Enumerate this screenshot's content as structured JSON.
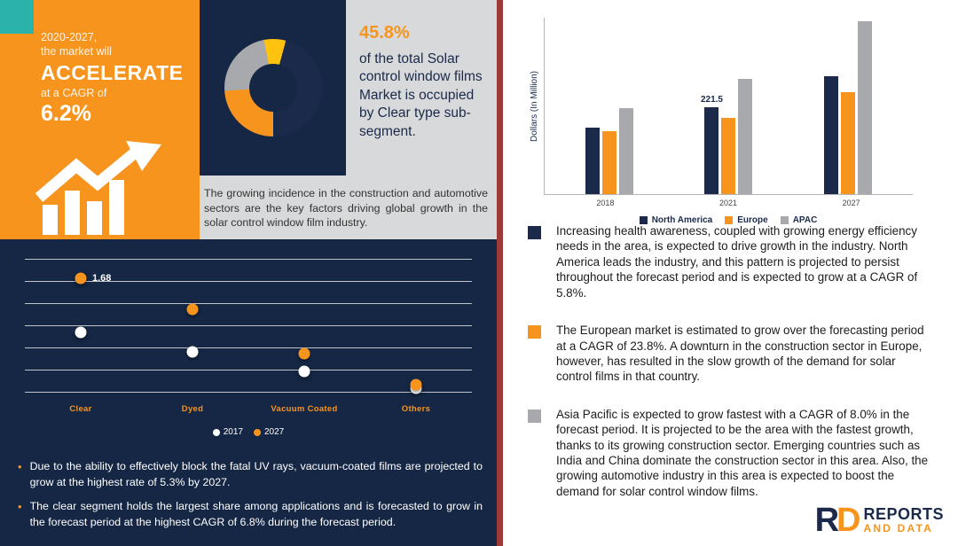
{
  "colors": {
    "orange": "#F7941E",
    "navy": "#152744",
    "navy_dark": "#1B2A4A",
    "gray": "#A7A9AC",
    "yellow": "#FFC20E",
    "teal": "#2BB3AB",
    "light_gray": "#D8D9DA",
    "stripe_red": "#9E3A38"
  },
  "promo": {
    "line1": "2020-2027,",
    "line2": "the market will",
    "accelerate": "ACCELERATE",
    "line3": "at a CAGR of",
    "cagr": "6.2%"
  },
  "highlight": {
    "pct": "45.8%",
    "text": "of the total Solar control window films Market is occupied by Clear type sub-segment."
  },
  "driver_text": "The growing incidence in the construction and automotive sectors are the key factors driving global growth in the solar control window film industry.",
  "left_bullets": [
    "Due to the ability to effectively block the fatal UV rays, vacuum-coated films are projected to grow at the highest rate of 5.3% by 2027.",
    "The clear segment holds the largest share among applications and is forecasted to grow in the forecast period at the highest CAGR of 6.8% during the forecast period."
  ],
  "right_bullets": [
    {
      "color": "#1B2A4A",
      "text": "Increasing health awareness, coupled with growing energy efficiency needs in the area, is expected to drive growth in the industry. North America leads the industry, and this pattern is projected to persist throughout the forecast period and is expected to grow at a CAGR of 5.8%."
    },
    {
      "color": "#F7941E",
      "text": "The European market is estimated to grow over the forecasting period at a CAGR of 23.8%. A downturn in the construction sector in Europe, however, has resulted in the slow growth of the demand for solar control films in that country."
    },
    {
      "color": "#A7A9AC",
      "text": "Asia Pacific is expected to grow fastest with a CAGR of 8.0% in the forecast period. It is projected to be the area with the fastest growth, thanks to its growing construction sector. Emerging countries such as India and China dominate the construction sector in this area. Also, the growing automotive industry in this area is expected to boost the demand for solar control window films."
    }
  ],
  "logo": {
    "r": "R",
    "d": "D",
    "reports": "REPORTS",
    "and_data": "AND DATA"
  },
  "chart_data": [
    {
      "type": "pie",
      "donut": true,
      "title": "Solar control window films market share by type",
      "slices": [
        {
          "label": "Clear",
          "value": 45.8,
          "color": "#1B2A4A"
        },
        {
          "label": "Dyed",
          "value": 24.0,
          "color": "#F7941E"
        },
        {
          "label": "Vacuum Coated",
          "value": 23.0,
          "color": "#A7A9AC"
        },
        {
          "label": "Others",
          "value": 7.2,
          "color": "#FFC20E"
        }
      ],
      "annotation": "45.8% of the total market is occupied by Clear type sub-segment"
    },
    {
      "type": "scatter",
      "categories": [
        "Clear",
        "Dyed",
        "Vacuum Coated",
        "Others"
      ],
      "series": [
        {
          "name": "2017",
          "color": "#FFFFFF",
          "values": [
            1.07,
            0.85,
            0.63,
            0.44
          ]
        },
        {
          "name": "2027",
          "color": "#F7941E",
          "values": [
            1.68,
            1.33,
            0.83,
            0.48
          ]
        }
      ],
      "ylim": [
        0.4,
        1.9
      ],
      "grid": true,
      "legend_position": "bottom",
      "annotation": {
        "series": "2027",
        "category": "Clear",
        "text": "1.68"
      }
    },
    {
      "type": "bar",
      "categories": [
        "2018",
        "2021",
        "2027"
      ],
      "series": [
        {
          "name": "North America",
          "color": "#1B2A4A",
          "values": [
            170,
            221.5,
            300
          ]
        },
        {
          "name": "Europe",
          "color": "#F7941E",
          "values": [
            160,
            195,
            260
          ]
        },
        {
          "name": "APAC",
          "color": "#A7A9AC",
          "values": [
            220,
            295,
            440
          ]
        }
      ],
      "xlabel": "",
      "ylabel": "Dollars (In Million)",
      "ylim": [
        0,
        450
      ],
      "grid": false,
      "legend_position": "bottom",
      "annotation": {
        "series": "North America",
        "category": "2021",
        "text": "221.5"
      }
    }
  ]
}
